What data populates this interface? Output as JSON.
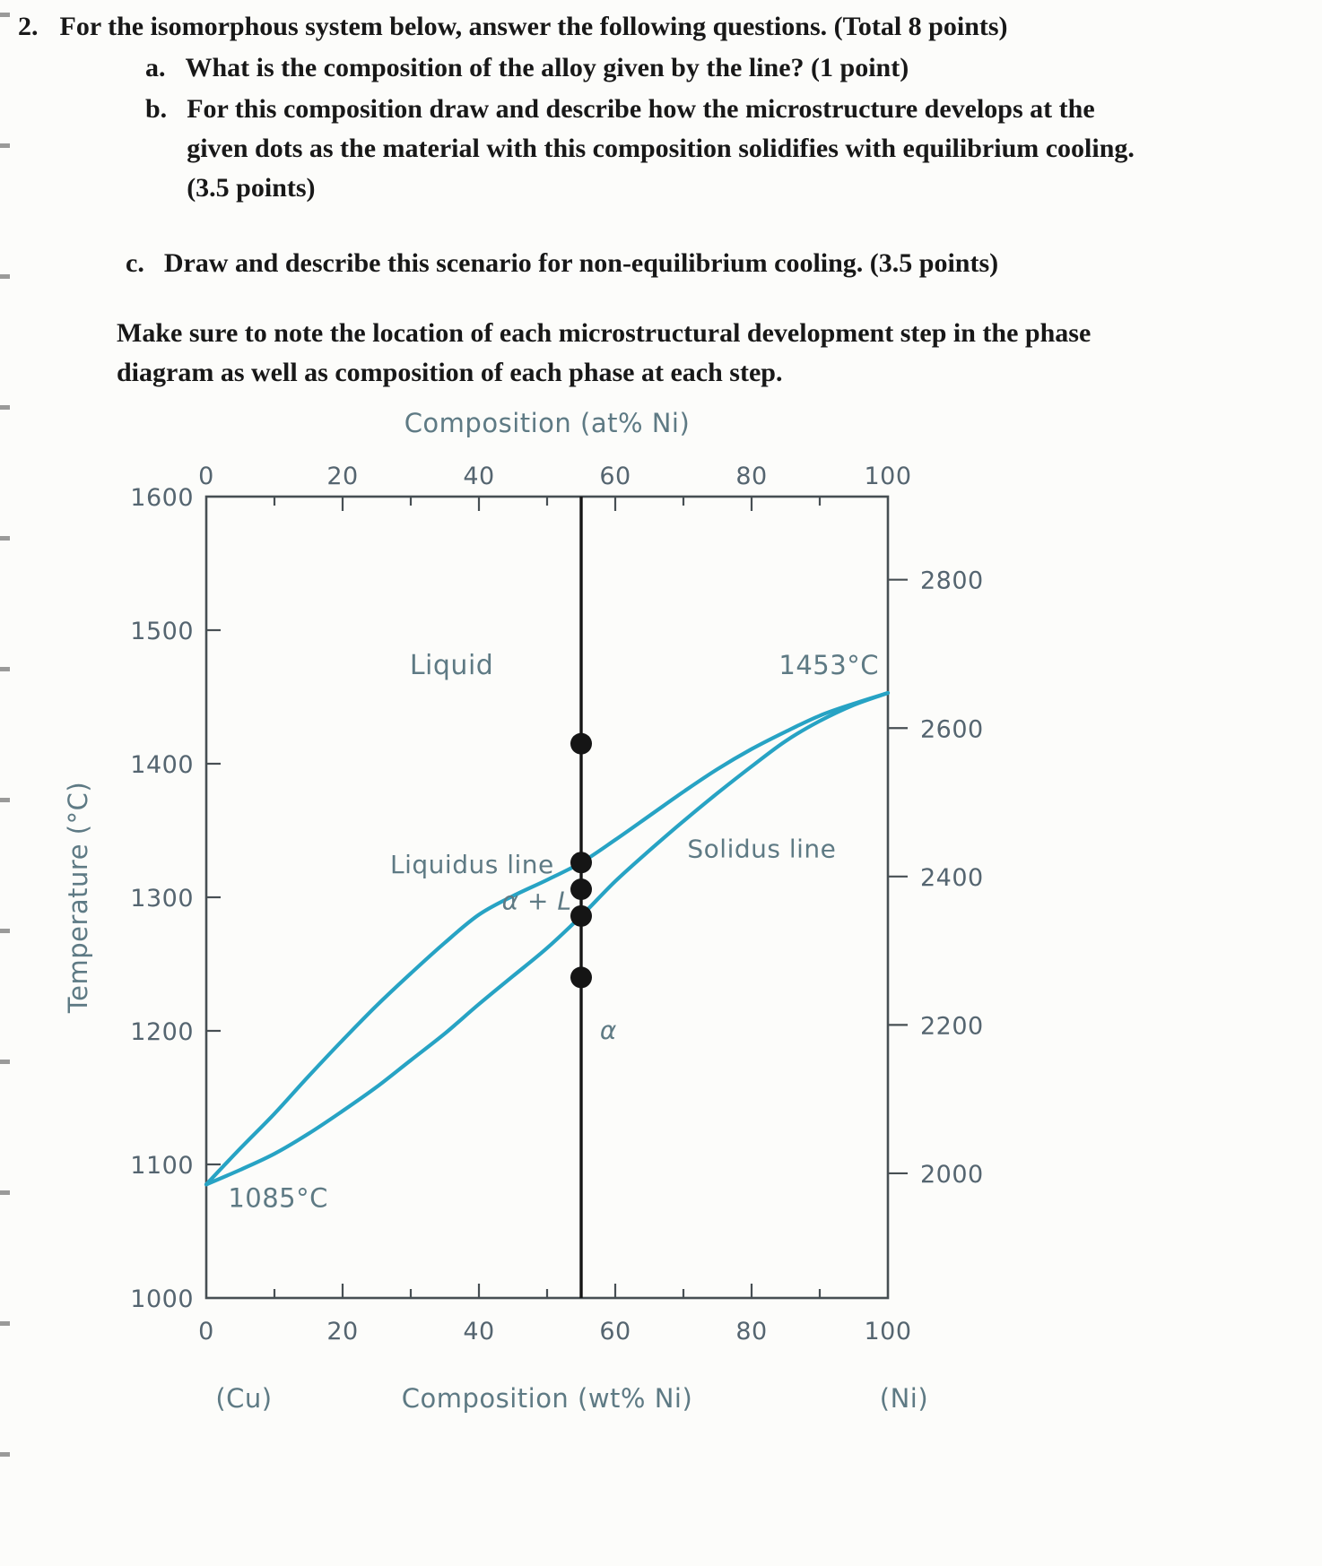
{
  "question": {
    "number": "2.",
    "intro": "For the isomorphous system below, answer the following questions. (Total 8 points)",
    "items": [
      {
        "label": "a.",
        "lines": [
          "What is the composition of the alloy given by the line? (1 point)"
        ]
      },
      {
        "label": "b.",
        "lines": [
          "For this composition draw and describe how the microstructure develops at the",
          "given dots as the material with this composition solidifies with equilibrium cooling.",
          "(3.5 points)"
        ]
      },
      {
        "label": "c.",
        "lines": [
          "Draw and describe this scenario for non-equilibrium cooling. (3.5 points)"
        ]
      }
    ],
    "note_lines": [
      "Make sure to note the location of each microstructural development step in the phase",
      "diagram as well as composition of each phase at each step."
    ]
  },
  "chart_data": {
    "type": "line",
    "description": "Cu-Ni isomorphous binary phase diagram with alloy composition line at 55 wt% Ni and five cooling dots",
    "axes": {
      "top_label": "Composition (at% Ni)",
      "bottom_label": "Composition (wt% Ni)",
      "left_label": "Temperature (°C)",
      "top_ticks_atpct": [
        0,
        20,
        40,
        60,
        80,
        100
      ],
      "bottom_ticks_wtpct": [
        0,
        20,
        40,
        60,
        80,
        100
      ],
      "left_ticks_C": [
        1000,
        1100,
        1200,
        1300,
        1400,
        1500,
        1600
      ],
      "right_ticks_F": [
        2800,
        2600,
        2400,
        2200,
        2000
      ],
      "xlim_wtpct": [
        0,
        100
      ],
      "ylim_C": [
        1000,
        1600
      ],
      "grid": false
    },
    "series": [
      {
        "name": "Liquidus line",
        "points_wtpct_C": [
          [
            0,
            1085
          ],
          [
            5,
            1112
          ],
          [
            10,
            1138
          ],
          [
            15,
            1166
          ],
          [
            20,
            1193
          ],
          [
            25,
            1219
          ],
          [
            30,
            1243
          ],
          [
            35,
            1266
          ],
          [
            40,
            1287
          ],
          [
            45,
            1301
          ],
          [
            50,
            1313
          ],
          [
            55,
            1326
          ],
          [
            60,
            1343
          ],
          [
            65,
            1361
          ],
          [
            70,
            1379
          ],
          [
            75,
            1396
          ],
          [
            80,
            1411
          ],
          [
            85,
            1424
          ],
          [
            90,
            1436
          ],
          [
            95,
            1445
          ],
          [
            100,
            1453
          ]
        ]
      },
      {
        "name": "Solidus line",
        "points_wtpct_C": [
          [
            0,
            1085
          ],
          [
            5,
            1096
          ],
          [
            10,
            1108
          ],
          [
            15,
            1123
          ],
          [
            20,
            1140
          ],
          [
            25,
            1158
          ],
          [
            30,
            1178
          ],
          [
            35,
            1198
          ],
          [
            40,
            1220
          ],
          [
            45,
            1241
          ],
          [
            50,
            1262
          ],
          [
            55,
            1286
          ],
          [
            60,
            1312
          ],
          [
            65,
            1335
          ],
          [
            70,
            1357
          ],
          [
            75,
            1378
          ],
          [
            80,
            1398
          ],
          [
            85,
            1417
          ],
          [
            90,
            1432
          ],
          [
            95,
            1444
          ],
          [
            100,
            1453
          ]
        ]
      }
    ],
    "alloy_line_wtpct": 55,
    "dots_wtpct_C": [
      [
        55,
        1415
      ],
      [
        55,
        1326
      ],
      [
        55,
        1306
      ],
      [
        55,
        1286
      ],
      [
        55,
        1240
      ]
    ],
    "labels": {
      "liquid": "Liquid",
      "liquidus": "Liquidus line",
      "solidus": "Solidus line",
      "alpha_plus_liquid": "α + L",
      "alpha": "α",
      "ni_melting_point": "1453°C",
      "cu_melting_point": "1085°C",
      "left_end": "(Cu)",
      "right_end": "(Ni)"
    },
    "colors": {
      "curve": "#27a3c4",
      "chart_text": "#5e7a84",
      "tick_text": "#556570",
      "axis": "#474f53",
      "ink": "#151515"
    }
  }
}
